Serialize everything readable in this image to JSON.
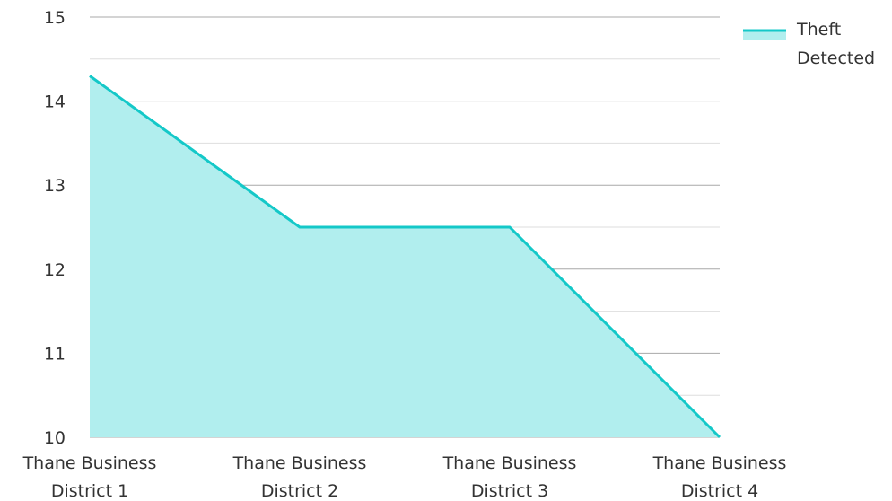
{
  "chart_data": {
    "type": "area",
    "categories": [
      [
        "Thane Business",
        "District 1"
      ],
      [
        "Thane Business",
        "District 2"
      ],
      [
        "Thane Business",
        "District 3"
      ],
      [
        "Thane Business",
        "District 4"
      ]
    ],
    "series": [
      {
        "name": "Theft Detected",
        "values": [
          14.3,
          12.5,
          12.5,
          10.0
        ]
      }
    ],
    "ylim": [
      10,
      15
    ],
    "y_ticks": [
      "10",
      "11",
      "12",
      "13",
      "14",
      "15"
    ],
    "minor_grid_step": 0.5,
    "grid": true,
    "legend": {
      "placement": "top-right",
      "lines": [
        "Theft",
        "Detected"
      ]
    },
    "colors": {
      "line": "#14c8c8",
      "fill": "#b1eeee",
      "major_grid": "#a8a8a8",
      "minor_grid": "#dedede",
      "text": "#333333"
    }
  }
}
